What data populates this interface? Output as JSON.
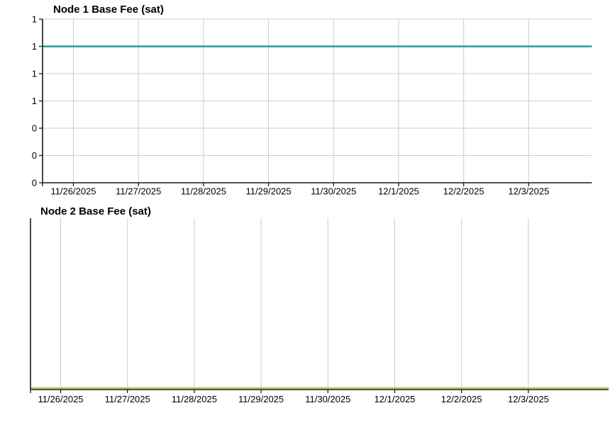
{
  "app": {
    "background_color": "#ffffff"
  },
  "colors": {
    "axis": "#1a1a1a",
    "gridline": "#cdcdcd",
    "tick": "#1a1a1a",
    "label_text": "#000000",
    "title_text": "#000000",
    "node1_line": "#1d9da4",
    "node2_line": "#9ecb3d"
  },
  "chart_data": [
    {
      "type": "line",
      "title": "Node 1 Base Fee (sat)",
      "xlabel": "",
      "ylabel": "",
      "x_tick_labels": [
        "11/26/2025",
        "11/27/2025",
        "11/28/2025",
        "11/29/2025",
        "11/30/2025",
        "12/1/2025",
        "12/2/2025",
        "12/3/2025"
      ],
      "y_tick_labels_top_to_bottom": [
        "1",
        "1",
        "1",
        "1",
        "0",
        "0",
        "0"
      ],
      "y_tick_values_top_to_bottom": [
        1.2,
        1.0,
        0.8,
        0.6,
        0.4,
        0.2,
        0.0
      ],
      "ylim": [
        0,
        1.2
      ],
      "grid": {
        "horizontal": true,
        "vertical": true
      },
      "legend": "none",
      "series": [
        {
          "name": "Node 1 base fee",
          "color": "#1d9da4",
          "constant_value": 1
        }
      ]
    },
    {
      "type": "line",
      "title": "Node 2 Base Fee (sat)",
      "xlabel": "",
      "ylabel": "",
      "x_tick_labels": [
        "11/26/2025",
        "11/27/2025",
        "11/28/2025",
        "11/29/2025",
        "11/30/2025",
        "12/1/2025",
        "12/2/2025",
        "12/3/2025"
      ],
      "y_tick_labels_top_to_bottom": [],
      "ylim": [
        0,
        1
      ],
      "grid": {
        "horizontal": false,
        "vertical": true
      },
      "legend": "none",
      "series": [
        {
          "name": "Node 2 base fee",
          "color": "#9ecb3d",
          "constant_value": 0
        }
      ]
    }
  ]
}
